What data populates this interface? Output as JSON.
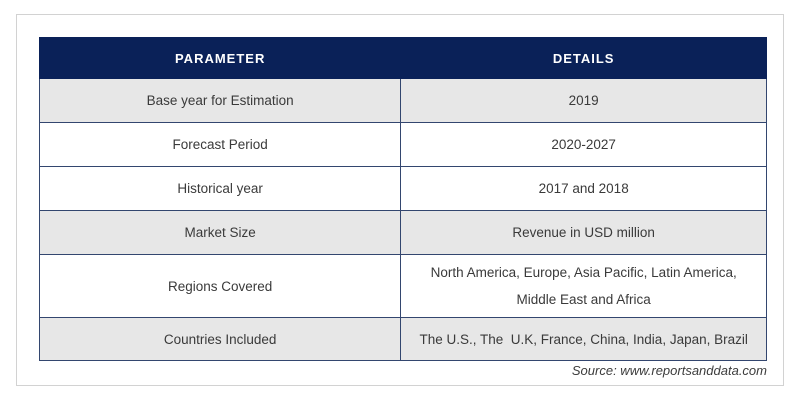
{
  "table": {
    "header": {
      "parameter": "PARAMETER",
      "details": "DETAILS"
    },
    "rows": [
      {
        "parameter": "Base year for Estimation",
        "details": "2019"
      },
      {
        "parameter": "Forecast Period",
        "details": "2020-2027"
      },
      {
        "parameter": "Historical year",
        "details": "2017 and 2018"
      },
      {
        "parameter": "Market Size",
        "details": "Revenue in USD million"
      },
      {
        "parameter": "Regions Covered",
        "details": "North America, Europe, Asia Pacific, Latin America, Middle East and Africa"
      },
      {
        "parameter": "Countries Included",
        "details": "The U.S., The  U.K, France, China, India, Japan, Brazil"
      }
    ]
  },
  "source": {
    "text": "Source: www.reportsanddata.com"
  },
  "colors": {
    "header_bg": "#0a2158",
    "header_text": "#ffffff",
    "shaded_row_bg": "#e7e7e7",
    "table_border": "#33466f",
    "body_text": "#3a3a3a",
    "card_border": "#d2d2d2"
  }
}
